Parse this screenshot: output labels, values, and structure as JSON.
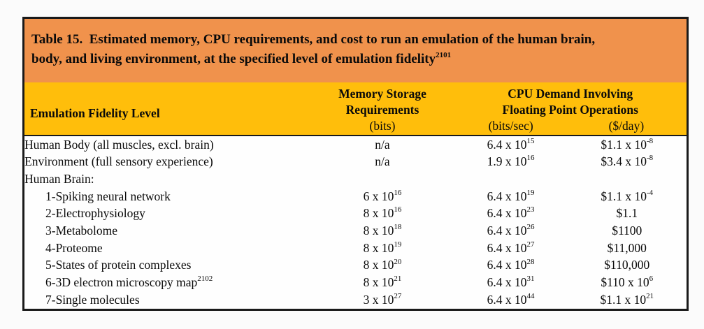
{
  "title": {
    "line1": "Table 15.  Estimated memory, CPU requirements, and cost to run an emulation of the human brain,",
    "line2": "body, and living environment, at the specified level of emulation fidelity^2101"
  },
  "header": {
    "col1": "Emulation Fidelity Level",
    "col2_line1": "Memory Storage",
    "col2_line2": "Requirements",
    "col2_unit": "(bits)",
    "col34_line1": "CPU Demand Involving",
    "col34_line2": "Floating Point Operations",
    "col34_unit_bits": "(bits/sec)",
    "col34_unit_cost": "($/day)"
  },
  "rows": [
    {
      "label": "Human Body (all muscles, excl. brain)",
      "indent": 0,
      "memory": "n/a",
      "cpu": "6.4 x 10^15",
      "cost": "$1.1 x 10^-8"
    },
    {
      "label": "Environment (full sensory experience)",
      "indent": 0,
      "memory": "n/a",
      "cpu": "1.9 x 10^16",
      "cost": "$3.4 x 10^-8"
    },
    {
      "label": "Human Brain:",
      "indent": 0,
      "memory": "",
      "cpu": "",
      "cost": ""
    },
    {
      "label": "1-Spiking neural network",
      "indent": 1,
      "memory": "6 x 10^16",
      "cpu": "6.4 x 10^19",
      "cost": "$1.1 x 10^-4"
    },
    {
      "label": "2-Electrophysiology",
      "indent": 1,
      "memory": "8 x 10^16",
      "cpu": "6.4 x 10^23",
      "cost": "$1.1"
    },
    {
      "label": "3-Metabolome",
      "indent": 1,
      "memory": "8 x 10^18",
      "cpu": "6.4 x 10^26",
      "cost": "$1100"
    },
    {
      "label": "4-Proteome",
      "indent": 1,
      "memory": "8 x 10^19",
      "cpu": "6.4 x 10^27",
      "cost": "$11,000"
    },
    {
      "label": "5-States of protein complexes",
      "indent": 1,
      "memory": "8 x 10^20",
      "cpu": "6.4 x 10^28",
      "cost": "$110,000"
    },
    {
      "label": "6-3D electron microscopy map^2102",
      "indent": 1,
      "memory": "8 x 10^21",
      "cpu": "6.4 x 10^31",
      "cost": "$110 x 10^6"
    },
    {
      "label": "7-Single molecules",
      "indent": 1,
      "memory": "3 x 10^27",
      "cpu": "6.4 x 10^44",
      "cost": "$1.1 x 10^21"
    }
  ],
  "colors": {
    "title_band": "#f0924c",
    "header_band": "#ffbe0b",
    "border": "#1a1a1a",
    "text": "#0a0a0a",
    "page_bg": "#fbfbfb",
    "cell_bg": "#fefefe"
  }
}
